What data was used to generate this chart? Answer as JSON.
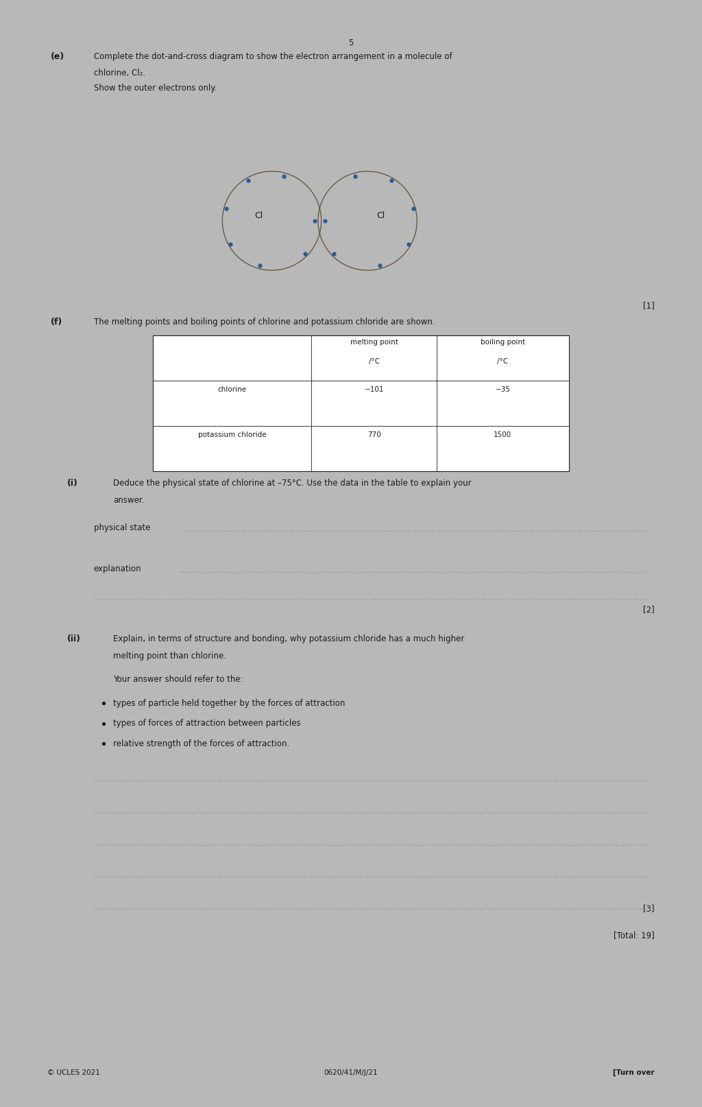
{
  "page_number": "5",
  "bg_color": "#b8b8b8",
  "paper_color": "#dcdcdc",
  "text_color": "#1a1a1a",
  "electron_color": "#2a5a9a",
  "circle_line_color": "#6b5a3a",
  "mark_e": "[1]",
  "mark_fi": "[2]",
  "mark_fii": "[3]",
  "total_mark": "[Total: 19]",
  "footer_left": "© UCLES 2021",
  "footer_center": "0620/41/M/J/21",
  "footer_right": "[Turn over",
  "bullets": [
    "types of particle held together by the forces of attraction",
    "types of forces of attraction between particles",
    "relative strength of the forces of attraction."
  ]
}
